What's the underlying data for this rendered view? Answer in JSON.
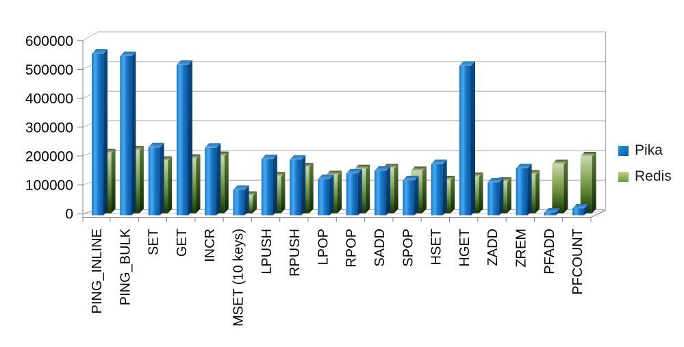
{
  "chart_data": {
    "type": "bar",
    "style": "3d-clustered-column",
    "title": "",
    "xlabel": "",
    "ylabel": "",
    "categories": [
      "PING_INLINE",
      "PING_BULK",
      "SET",
      "GET",
      "INCR",
      "MSET (10 keys)",
      "LPUSH",
      "RPUSH",
      "LPOP",
      "RPOP",
      "SADD",
      "SPOP",
      "HSET",
      "HGET",
      "ZADD",
      "ZREM",
      "PFADD",
      "PFCOUNT"
    ],
    "series": [
      {
        "name": "Pika",
        "color": "#1777c8",
        "values": [
          540000,
          532000,
          227000,
          503000,
          226000,
          85000,
          188000,
          186000,
          121000,
          140000,
          149000,
          117000,
          171000,
          500000,
          110000,
          157000,
          9000,
          23000
        ]
      },
      {
        "name": "Redis",
        "color": "#8db360",
        "values": [
          200000,
          210000,
          175000,
          182000,
          191000,
          58000,
          123000,
          153000,
          127000,
          147000,
          150000,
          141000,
          110000,
          121000,
          105000,
          129000,
          164000,
          190000
        ]
      }
    ],
    "ylim": [
      0,
      600000
    ],
    "ytick_step": 100000,
    "ytick_labels": [
      "0",
      "100000",
      "200000",
      "300000",
      "400000",
      "500000",
      "600000"
    ],
    "grid": true,
    "legend_position": "right",
    "background_color": "#ffffff",
    "gridline_color": "#a6a6a6",
    "axis_text_color": "#000000"
  }
}
